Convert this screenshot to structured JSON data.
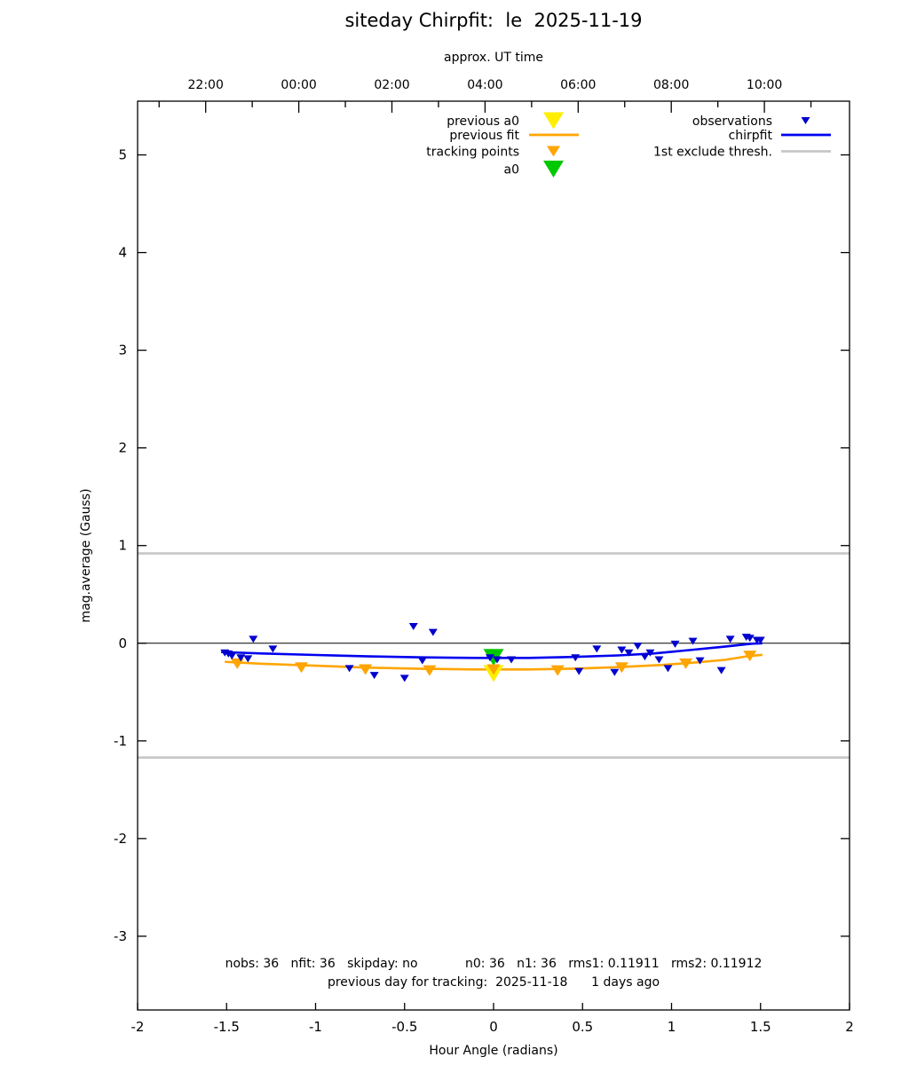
{
  "title": "siteday Chirpfit:  le  2025-11-19",
  "stats": {
    "line1": "nobs: 36   nfit: 36   skipday: no            n0: 36   n1: 36   rms1: 0.11911   rms2: 0.11912",
    "line2": "previous day for tracking:  2025-11-18      1 days ago"
  },
  "colors": {
    "blue_line": "#0000f0",
    "blue_marker": "#0000cd",
    "orange": "#ffa500",
    "yellow": "#ffee00",
    "green": "#00c800",
    "gray": "#c6c6c6",
    "axis": "#000000"
  },
  "chart_data": {
    "type": "scatter",
    "title": "siteday Chirpfit:  le  2025-11-19",
    "xlabel": "Hour Angle (radians)",
    "ylabel": "mag.average (Gauss)",
    "xlim": [
      -2,
      2
    ],
    "ylim": [
      -3.755,
      5.55
    ],
    "xticks": [
      "-2",
      "-1.5",
      "-1",
      "-0.5",
      "0",
      "0.5",
      "1",
      "1.5",
      "2"
    ],
    "yticks": [
      "-3",
      "-2",
      "-1",
      "0",
      "1",
      "2",
      "3",
      "4",
      "5"
    ],
    "grid": false,
    "zero_line": 0,
    "top_axis": {
      "label": "approx. UT time",
      "tick_labels": [
        "22:00",
        "00:00",
        "02:00",
        "04:00",
        "06:00",
        "08:00",
        "10:00"
      ],
      "hours_span": "21:00 to 11:00 hourly minor ticks, labels every 2 hours"
    },
    "series": [
      {
        "name": "1st exclude thresh.",
        "type": "hline",
        "color_key": "gray",
        "values": [
          0.92,
          -1.17
        ]
      },
      {
        "name": "previous fit",
        "type": "line",
        "color_key": "orange",
        "points": [
          [
            -1.51,
            -0.19
          ],
          [
            -1.3,
            -0.21
          ],
          [
            -1.0,
            -0.23
          ],
          [
            -0.7,
            -0.25
          ],
          [
            -0.4,
            -0.262
          ],
          [
            -0.1,
            -0.268
          ],
          [
            0.2,
            -0.268
          ],
          [
            0.45,
            -0.26
          ],
          [
            0.7,
            -0.245
          ],
          [
            0.95,
            -0.222
          ],
          [
            1.15,
            -0.195
          ],
          [
            1.3,
            -0.17
          ],
          [
            1.42,
            -0.135
          ],
          [
            1.51,
            -0.118
          ]
        ]
      },
      {
        "name": "chirpfit",
        "type": "line",
        "color_key": "blue_line",
        "points": [
          [
            -1.53,
            -0.09
          ],
          [
            -1.3,
            -0.105
          ],
          [
            -1.0,
            -0.12
          ],
          [
            -0.7,
            -0.135
          ],
          [
            -0.4,
            -0.145
          ],
          [
            -0.1,
            -0.15
          ],
          [
            0.2,
            -0.15
          ],
          [
            0.45,
            -0.14
          ],
          [
            0.7,
            -0.125
          ],
          [
            0.9,
            -0.105
          ],
          [
            1.1,
            -0.07
          ],
          [
            1.3,
            -0.035
          ],
          [
            1.45,
            -0.005
          ],
          [
            1.51,
            0.0
          ]
        ]
      },
      {
        "name": "previous a0",
        "type": "scatter",
        "marker": "triangle-large",
        "color_key": "yellow",
        "points": [
          [
            0,
            -0.31
          ]
        ]
      },
      {
        "name": "a0",
        "type": "scatter",
        "marker": "triangle-large",
        "color_key": "green",
        "points": [
          [
            0,
            -0.145
          ]
        ]
      },
      {
        "name": "tracking points",
        "type": "scatter",
        "marker": "triangle-medium",
        "color_key": "orange",
        "points": [
          [
            -1.44,
            -0.21
          ],
          [
            -1.08,
            -0.25
          ],
          [
            -0.72,
            -0.27
          ],
          [
            -0.36,
            -0.28
          ],
          [
            0.0,
            -0.27
          ],
          [
            0.36,
            -0.28
          ],
          [
            0.72,
            -0.25
          ],
          [
            1.08,
            -0.21
          ],
          [
            1.44,
            -0.13
          ]
        ]
      },
      {
        "name": "observations",
        "type": "scatter",
        "marker": "triangle-small",
        "color_key": "blue_marker",
        "points": [
          [
            -1.51,
            -0.1
          ],
          [
            -1.49,
            -0.11
          ],
          [
            -1.47,
            -0.13
          ],
          [
            -1.42,
            -0.15
          ],
          [
            -1.38,
            -0.16
          ],
          [
            -1.35,
            0.04
          ],
          [
            -1.24,
            -0.06
          ],
          [
            -0.81,
            -0.26
          ],
          [
            -0.67,
            -0.33
          ],
          [
            -0.5,
            -0.36
          ],
          [
            -0.45,
            0.17
          ],
          [
            -0.4,
            -0.18
          ],
          [
            -0.34,
            0.11
          ],
          [
            -0.02,
            -0.15
          ],
          [
            0.02,
            -0.17
          ],
          [
            0.1,
            -0.17
          ],
          [
            0.46,
            -0.15
          ],
          [
            0.48,
            -0.29
          ],
          [
            0.58,
            -0.06
          ],
          [
            0.68,
            -0.3
          ],
          [
            0.72,
            -0.07
          ],
          [
            0.76,
            -0.1
          ],
          [
            0.81,
            -0.03
          ],
          [
            0.85,
            -0.14
          ],
          [
            0.88,
            -0.1
          ],
          [
            0.93,
            -0.17
          ],
          [
            0.98,
            -0.26
          ],
          [
            1.02,
            -0.01
          ],
          [
            1.12,
            0.02
          ],
          [
            1.16,
            -0.18
          ],
          [
            1.28,
            -0.28
          ],
          [
            1.33,
            0.04
          ],
          [
            1.42,
            0.06
          ],
          [
            1.44,
            0.05
          ],
          [
            1.48,
            0.03
          ],
          [
            1.5,
            0.03
          ]
        ]
      }
    ],
    "legend": {
      "position": "top inside, two columns",
      "left": [
        {
          "label": "previous a0",
          "marker": "triangle-large",
          "color_key": "yellow"
        },
        {
          "label": "previous fit",
          "marker": "line",
          "color_key": "orange"
        },
        {
          "label": "tracking points",
          "marker": "triangle-medium",
          "color_key": "orange"
        },
        {
          "label": "a0",
          "marker": "triangle-large",
          "color_key": "green"
        }
      ],
      "right": [
        {
          "label": "observations",
          "marker": "triangle-small",
          "color_key": "blue_marker"
        },
        {
          "label": "chirpfit",
          "marker": "line",
          "color_key": "blue_line"
        },
        {
          "label": "1st exclude thresh.",
          "marker": "line",
          "color_key": "gray"
        }
      ]
    }
  }
}
